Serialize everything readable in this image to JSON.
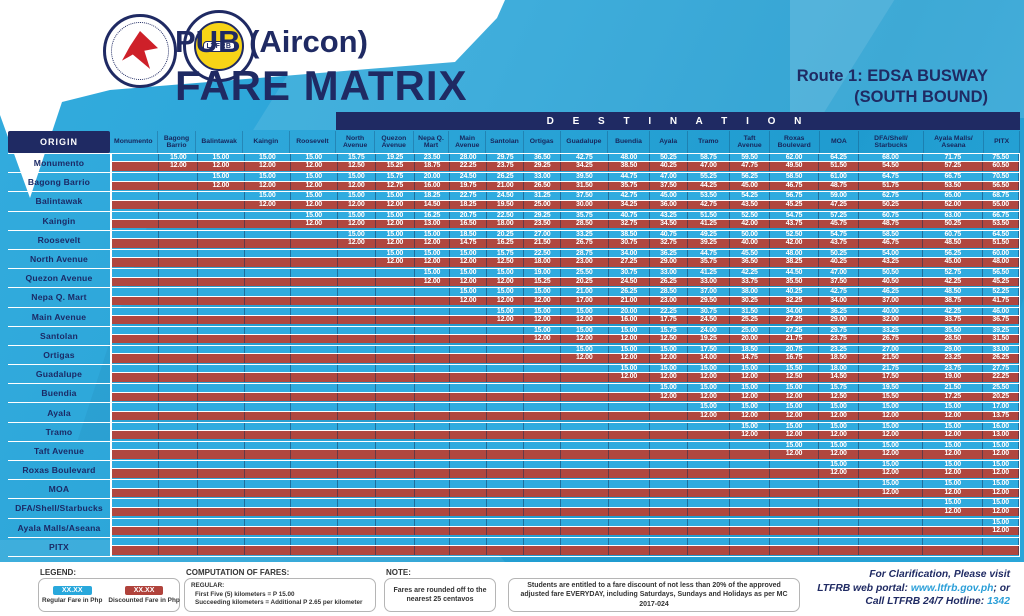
{
  "header": {
    "title_line1": "PUB (Aircon)",
    "title_line2": "FARE MATRIX",
    "route_line1": "Route 1: EDSA BUSWAY",
    "route_line2": "(SOUTH BOUND)",
    "logos": [
      "dotr-seal",
      "ltfrb-seal"
    ],
    "ltfrb_tag": "LTFRB"
  },
  "colors": {
    "background_cyan": "#2aa4d7",
    "navy": "#1f2a63",
    "regular_band_blue": "#2fabdf",
    "discounted_band_red": "#b0473f",
    "link_blue": "#2b9fd8",
    "seal_yellow": "#f7d417",
    "seal_red": "#ce2029"
  },
  "table": {
    "destination_label": "D E S T I N A T I O N",
    "origin_label": "ORIGIN",
    "columns": [
      "Monumento",
      "Bagong Barrio",
      "Balintawak",
      "Kaingin",
      "Roosevelt",
      "North Avenue",
      "Quezon Avenue",
      "Nepa Q. Mart",
      "Main Avenue",
      "Santolan",
      "Ortigas",
      "Guadalupe",
      "Buendia",
      "Ayala",
      "Tramo",
      "Taft Avenue",
      "Roxas Boulevard",
      "MOA",
      "DFA/Shell/ Starbucks",
      "Ayala Malls/ Aseana",
      "PITX"
    ],
    "rows": [
      {
        "origin": "Monumento",
        "regular": [
          "",
          "15.00",
          "15.00",
          "15.00",
          "15.00",
          "15.75",
          "19.25",
          "23.50",
          "28.00",
          "29.75",
          "36.50",
          "42.75",
          "48.00",
          "50.25",
          "58.75",
          "59.50",
          "62.00",
          "64.25",
          "68.00",
          "71.75",
          "75.50"
        ],
        "discounted": [
          "",
          "12.00",
          "12.00",
          "12.00",
          "12.00",
          "12.50",
          "15.25",
          "18.75",
          "22.25",
          "23.75",
          "29.25",
          "34.25",
          "38.50",
          "40.25",
          "47.00",
          "47.75",
          "49.50",
          "51.50",
          "54.50",
          "57.25",
          "60.50"
        ]
      },
      {
        "origin": "Bagong Barrio",
        "regular": [
          "",
          "",
          "15.00",
          "15.00",
          "15.00",
          "15.00",
          "15.75",
          "20.00",
          "24.50",
          "26.25",
          "33.00",
          "39.50",
          "44.75",
          "47.00",
          "55.25",
          "56.25",
          "58.50",
          "61.00",
          "64.75",
          "66.75",
          "70.50"
        ],
        "discounted": [
          "",
          "",
          "12.00",
          "12.00",
          "12.00",
          "12.00",
          "12.75",
          "16.00",
          "19.75",
          "21.00",
          "26.50",
          "31.50",
          "35.75",
          "37.50",
          "44.25",
          "45.00",
          "46.75",
          "48.75",
          "51.75",
          "53.50",
          "56.50"
        ]
      },
      {
        "origin": "Balintawak",
        "regular": [
          "",
          "",
          "",
          "15.00",
          "15.00",
          "15.00",
          "15.00",
          "18.25",
          "22.75",
          "24.50",
          "31.25",
          "37.50",
          "42.75",
          "45.00",
          "53.50",
          "54.25",
          "56.75",
          "59.00",
          "62.75",
          "65.00",
          "68.75"
        ],
        "discounted": [
          "",
          "",
          "",
          "12.00",
          "12.00",
          "12.00",
          "12.00",
          "14.50",
          "18.25",
          "19.50",
          "25.00",
          "30.00",
          "34.25",
          "36.00",
          "42.75",
          "43.50",
          "45.25",
          "47.25",
          "50.25",
          "52.00",
          "55.00"
        ]
      },
      {
        "origin": "Kaingin",
        "regular": [
          "",
          "",
          "",
          "",
          "15.00",
          "15.00",
          "15.00",
          "16.25",
          "20.75",
          "22.50",
          "29.25",
          "35.75",
          "40.75",
          "43.25",
          "51.50",
          "52.50",
          "54.75",
          "57.25",
          "60.75",
          "63.00",
          "66.75"
        ],
        "discounted": [
          "",
          "",
          "",
          "",
          "12.00",
          "12.00",
          "12.00",
          "13.00",
          "16.50",
          "18.00",
          "23.50",
          "28.50",
          "32.75",
          "34.50",
          "41.25",
          "42.00",
          "43.75",
          "45.75",
          "48.75",
          "50.25",
          "53.50"
        ]
      },
      {
        "origin": "Roosevelt",
        "regular": [
          "",
          "",
          "",
          "",
          "",
          "15.00",
          "15.00",
          "15.00",
          "18.50",
          "20.25",
          "27.00",
          "33.25",
          "38.50",
          "40.75",
          "49.25",
          "50.00",
          "52.50",
          "54.75",
          "58.50",
          "60.75",
          "64.50"
        ],
        "discounted": [
          "",
          "",
          "",
          "",
          "",
          "12.00",
          "12.00",
          "12.00",
          "14.75",
          "16.25",
          "21.50",
          "26.75",
          "30.75",
          "32.75",
          "39.25",
          "40.00",
          "42.00",
          "43.75",
          "46.75",
          "48.50",
          "51.50"
        ]
      },
      {
        "origin": "North Avenue",
        "regular": [
          "",
          "",
          "",
          "",
          "",
          "",
          "15.00",
          "15.00",
          "15.00",
          "15.75",
          "22.50",
          "28.75",
          "34.00",
          "36.25",
          "44.75",
          "45.50",
          "48.00",
          "50.25",
          "54.00",
          "56.25",
          "60.00"
        ],
        "discounted": [
          "",
          "",
          "",
          "",
          "",
          "",
          "12.00",
          "12.00",
          "12.00",
          "12.50",
          "18.00",
          "23.00",
          "27.25",
          "29.00",
          "35.75",
          "36.50",
          "38.25",
          "40.25",
          "43.25",
          "45.00",
          "48.00"
        ]
      },
      {
        "origin": "Quezon Avenue",
        "regular": [
          "",
          "",
          "",
          "",
          "",
          "",
          "",
          "15.00",
          "15.00",
          "15.00",
          "19.00",
          "25.50",
          "30.75",
          "33.00",
          "41.25",
          "42.25",
          "44.50",
          "47.00",
          "50.50",
          "52.75",
          "56.50"
        ],
        "discounted": [
          "",
          "",
          "",
          "",
          "",
          "",
          "",
          "12.00",
          "12.00",
          "12.00",
          "15.25",
          "20.25",
          "24.50",
          "26.25",
          "33.00",
          "33.75",
          "35.50",
          "37.50",
          "40.50",
          "42.25",
          "45.25"
        ]
      },
      {
        "origin": "Nepa Q. Mart",
        "regular": [
          "",
          "",
          "",
          "",
          "",
          "",
          "",
          "",
          "15.00",
          "15.00",
          "15.00",
          "21.00",
          "26.25",
          "28.50",
          "37.00",
          "38.00",
          "40.25",
          "42.75",
          "46.25",
          "48.50",
          "52.25"
        ],
        "discounted": [
          "",
          "",
          "",
          "",
          "",
          "",
          "",
          "",
          "12.00",
          "12.00",
          "12.00",
          "17.00",
          "21.00",
          "23.00",
          "29.50",
          "30.25",
          "32.25",
          "34.00",
          "37.00",
          "38.75",
          "41.75"
        ]
      },
      {
        "origin": "Main Avenue",
        "regular": [
          "",
          "",
          "",
          "",
          "",
          "",
          "",
          "",
          "",
          "15.00",
          "15.00",
          "15.00",
          "20.00",
          "22.25",
          "30.75",
          "31.50",
          "34.00",
          "36.25",
          "40.00",
          "42.25",
          "46.00"
        ],
        "discounted": [
          "",
          "",
          "",
          "",
          "",
          "",
          "",
          "",
          "",
          "12.00",
          "12.00",
          "12.00",
          "16.00",
          "17.75",
          "24.50",
          "25.25",
          "27.25",
          "29.00",
          "32.00",
          "33.75",
          "36.75"
        ]
      },
      {
        "origin": "Santolan",
        "regular": [
          "",
          "",
          "",
          "",
          "",
          "",
          "",
          "",
          "",
          "",
          "15.00",
          "15.00",
          "15.00",
          "15.75",
          "24.00",
          "25.00",
          "27.25",
          "29.75",
          "33.25",
          "35.50",
          "39.25"
        ],
        "discounted": [
          "",
          "",
          "",
          "",
          "",
          "",
          "",
          "",
          "",
          "",
          "12.00",
          "12.00",
          "12.00",
          "12.50",
          "19.25",
          "20.00",
          "21.75",
          "23.75",
          "26.75",
          "28.50",
          "31.50"
        ]
      },
      {
        "origin": "Ortigas",
        "regular": [
          "",
          "",
          "",
          "",
          "",
          "",
          "",
          "",
          "",
          "",
          "",
          "15.00",
          "15.00",
          "15.00",
          "17.50",
          "18.50",
          "20.75",
          "23.25",
          "27.00",
          "29.00",
          "33.00"
        ],
        "discounted": [
          "",
          "",
          "",
          "",
          "",
          "",
          "",
          "",
          "",
          "",
          "",
          "12.00",
          "12.00",
          "12.00",
          "14.00",
          "14.75",
          "16.75",
          "18.50",
          "21.50",
          "23.25",
          "26.25"
        ]
      },
      {
        "origin": "Guadalupe",
        "regular": [
          "",
          "",
          "",
          "",
          "",
          "",
          "",
          "",
          "",
          "",
          "",
          "",
          "15.00",
          "15.00",
          "15.00",
          "15.00",
          "15.50",
          "18.00",
          "21.75",
          "23.75",
          "27.75"
        ],
        "discounted": [
          "",
          "",
          "",
          "",
          "",
          "",
          "",
          "",
          "",
          "",
          "",
          "",
          "12.00",
          "12.00",
          "12.00",
          "12.00",
          "12.50",
          "14.50",
          "17.50",
          "19.00",
          "22.25"
        ]
      },
      {
        "origin": "Buendia",
        "regular": [
          "",
          "",
          "",
          "",
          "",
          "",
          "",
          "",
          "",
          "",
          "",
          "",
          "",
          "15.00",
          "15.00",
          "15.00",
          "15.00",
          "15.75",
          "19.50",
          "21.50",
          "25.50"
        ],
        "discounted": [
          "",
          "",
          "",
          "",
          "",
          "",
          "",
          "",
          "",
          "",
          "",
          "",
          "",
          "12.00",
          "12.00",
          "12.00",
          "12.00",
          "12.50",
          "15.50",
          "17.25",
          "20.25"
        ]
      },
      {
        "origin": "Ayala",
        "regular": [
          "",
          "",
          "",
          "",
          "",
          "",
          "",
          "",
          "",
          "",
          "",
          "",
          "",
          "",
          "15.00",
          "15.00",
          "15.00",
          "15.00",
          "15.00",
          "15.00",
          "17.00"
        ],
        "discounted": [
          "",
          "",
          "",
          "",
          "",
          "",
          "",
          "",
          "",
          "",
          "",
          "",
          "",
          "",
          "12.00",
          "12.00",
          "12.00",
          "12.00",
          "12.00",
          "12.00",
          "13.75"
        ]
      },
      {
        "origin": "Tramo",
        "regular": [
          "",
          "",
          "",
          "",
          "",
          "",
          "",
          "",
          "",
          "",
          "",
          "",
          "",
          "",
          "",
          "15.00",
          "15.00",
          "15.00",
          "15.00",
          "15.00",
          "16.00"
        ],
        "discounted": [
          "",
          "",
          "",
          "",
          "",
          "",
          "",
          "",
          "",
          "",
          "",
          "",
          "",
          "",
          "",
          "12.00",
          "12.00",
          "12.00",
          "12.00",
          "12.00",
          "13.00"
        ]
      },
      {
        "origin": "Taft Avenue",
        "regular": [
          "",
          "",
          "",
          "",
          "",
          "",
          "",
          "",
          "",
          "",
          "",
          "",
          "",
          "",
          "",
          "",
          "15.00",
          "15.00",
          "15.00",
          "15.00",
          "15.00"
        ],
        "discounted": [
          "",
          "",
          "",
          "",
          "",
          "",
          "",
          "",
          "",
          "",
          "",
          "",
          "",
          "",
          "",
          "",
          "12.00",
          "12.00",
          "12.00",
          "12.00",
          "12.00"
        ]
      },
      {
        "origin": "Roxas Boulevard",
        "regular": [
          "",
          "",
          "",
          "",
          "",
          "",
          "",
          "",
          "",
          "",
          "",
          "",
          "",
          "",
          "",
          "",
          "",
          "15.00",
          "15.00",
          "15.00",
          "15.00"
        ],
        "discounted": [
          "",
          "",
          "",
          "",
          "",
          "",
          "",
          "",
          "",
          "",
          "",
          "",
          "",
          "",
          "",
          "",
          "",
          "12.00",
          "12.00",
          "12.00",
          "12.00"
        ]
      },
      {
        "origin": "MOA",
        "regular": [
          "",
          "",
          "",
          "",
          "",
          "",
          "",
          "",
          "",
          "",
          "",
          "",
          "",
          "",
          "",
          "",
          "",
          "",
          "15.00",
          "15.00",
          "15.00"
        ],
        "discounted": [
          "",
          "",
          "",
          "",
          "",
          "",
          "",
          "",
          "",
          "",
          "",
          "",
          "",
          "",
          "",
          "",
          "",
          "",
          "12.00",
          "12.00",
          "12.00"
        ]
      },
      {
        "origin": "DFA/Shell/Starbucks",
        "regular": [
          "",
          "",
          "",
          "",
          "",
          "",
          "",
          "",
          "",
          "",
          "",
          "",
          "",
          "",
          "",
          "",
          "",
          "",
          "",
          "15.00",
          "15.00"
        ],
        "discounted": [
          "",
          "",
          "",
          "",
          "",
          "",
          "",
          "",
          "",
          "",
          "",
          "",
          "",
          "",
          "",
          "",
          "",
          "",
          "",
          "12.00",
          "12.00"
        ]
      },
      {
        "origin": "Ayala Malls/Aseana",
        "regular": [
          "",
          "",
          "",
          "",
          "",
          "",
          "",
          "",
          "",
          "",
          "",
          "",
          "",
          "",
          "",
          "",
          "",
          "",
          "",
          "",
          "15.00"
        ],
        "discounted": [
          "",
          "",
          "",
          "",
          "",
          "",
          "",
          "",
          "",
          "",
          "",
          "",
          "",
          "",
          "",
          "",
          "",
          "",
          "",
          "",
          "12.00"
        ]
      },
      {
        "origin": "PITX",
        "regular": [
          "",
          "",
          "",
          "",
          "",
          "",
          "",
          "",
          "",
          "",
          "",
          "",
          "",
          "",
          "",
          "",
          "",
          "",
          "",
          "",
          ""
        ],
        "discounted": [
          "",
          "",
          "",
          "",
          "",
          "",
          "",
          "",
          "",
          "",
          "",
          "",
          "",
          "",
          "",
          "",
          "",
          "",
          "",
          "",
          ""
        ]
      }
    ]
  },
  "legend": {
    "label": "LEGEND:",
    "regular_chip": "XX.XX",
    "regular_label": "Regular Fare in Php",
    "discounted_chip": "XX.XX",
    "discounted_label": "Discounted Fare in Php"
  },
  "computation": {
    "label": "COMPUTATION OF FARES:",
    "line1": "REGULAR:",
    "line2": "First Five (5) kilometers = P 15.00",
    "line3": "Succeeding kilometers = Additional P 2.65 per kilometer"
  },
  "note": {
    "label": "NOTE:",
    "text": "Fares are rounded off to the nearest 25 centavos"
  },
  "students": {
    "text": "Students are entitled to a fare discount of not less than 20% of the approved adjusted fare EVERYDAY, including Saturdays, Sundays and Holidays as per MC 2017-024"
  },
  "clarification": {
    "line1": "For Clarification, Please visit",
    "line2_prefix": "LTFRB web portal: ",
    "line2_link": "www.ltfrb.gov.ph",
    "line2_suffix": "; or",
    "line3_prefix": "Call LTFRB 24/7 Hotline: ",
    "line3_hotline": "1342"
  }
}
